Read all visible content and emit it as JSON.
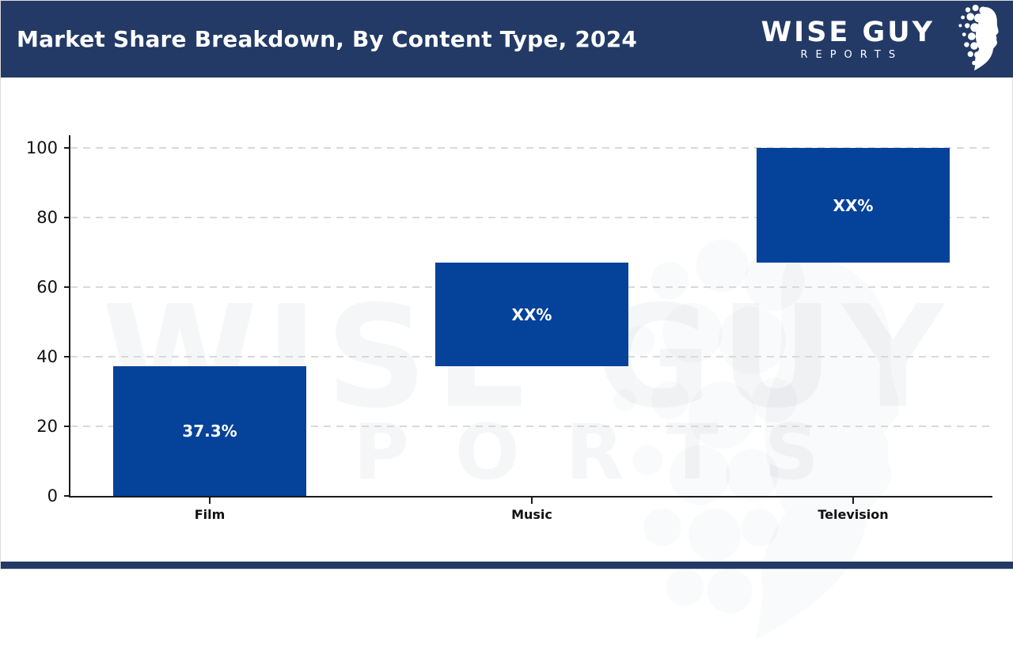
{
  "header": {
    "title": "Market Share Breakdown, By Content Type, 2024",
    "background_color": "#233a66"
  },
  "logo": {
    "line1": "WISE GUY",
    "line2": "REPORTS"
  },
  "watermark": {
    "line1": "WISE GUY",
    "line2": "REPORTS"
  },
  "chart_data": {
    "type": "bar",
    "subtype": "floating-waterfall",
    "title": "Market Share Breakdown, By Content Type, 2024",
    "categories": [
      "Film",
      "Music",
      "Television"
    ],
    "segments": [
      {
        "category": "Film",
        "from": 0,
        "to": 37.3,
        "label": "37.3%"
      },
      {
        "category": "Music",
        "from": 37.3,
        "to": 67,
        "label": "XX%"
      },
      {
        "category": "Television",
        "from": 67,
        "to": 100,
        "label": "XX%"
      }
    ],
    "xlabel": "",
    "ylabel": "",
    "ylim": [
      0,
      100
    ],
    "yticks": [
      0,
      20,
      40,
      60,
      80,
      100
    ],
    "grid": "horizontal-dashed",
    "legend": "none",
    "bar_color": "#05429a",
    "bar_label_color": "#ffffff"
  }
}
